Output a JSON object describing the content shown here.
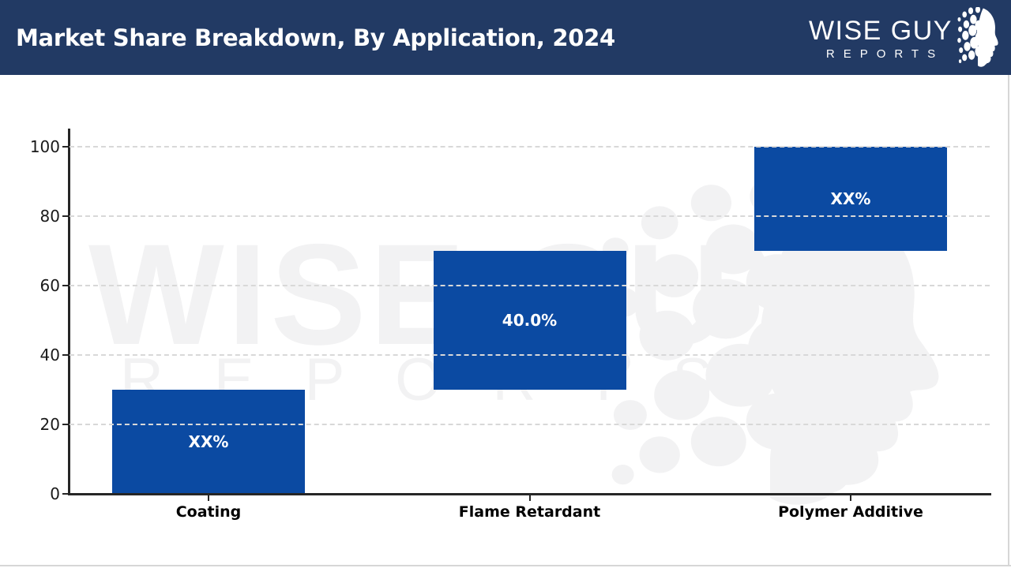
{
  "header": {
    "title": "Market Share Breakdown, By Application, 2024",
    "logo": {
      "line1": "WISE GUY",
      "line2": "REPORTS"
    }
  },
  "watermark": {
    "line1": "WISE GUY",
    "line2": "REPORTS"
  },
  "chart_data": {
    "type": "bar",
    "subtype": "floating-segment-bars (waterfall-style market share)",
    "title": "Market Share Breakdown, By Application, 2024",
    "categories": [
      "Coating",
      "Flame Retardant",
      "Polymer Additive"
    ],
    "bars": [
      {
        "category": "Coating",
        "start": 0,
        "end": 30,
        "label": "XX%"
      },
      {
        "category": "Flame Retardant",
        "start": 30,
        "end": 70,
        "label": "40.0%"
      },
      {
        "category": "Polymer Additive",
        "start": 70,
        "end": 100,
        "label": "XX%"
      }
    ],
    "xlabel": "",
    "ylabel": "",
    "yticks": [
      0,
      20,
      40,
      60,
      80,
      100
    ],
    "ylim": [
      0,
      105
    ],
    "grid": {
      "axis": "y",
      "style": "dashed",
      "drawn_above_bars": true
    },
    "legend": null,
    "colors": {
      "bar": "#0b4aa2",
      "bar_label": "#ffffff",
      "axis": "#262626",
      "tick_label": "#1a1a1a",
      "gridline": "#d8d8d8"
    }
  },
  "theme": {
    "header_bg": "#223a64",
    "header_text": "#ffffff",
    "page_bg": "#ffffff",
    "watermark_color": "#f2f2f3",
    "edge_line": "#d6d6d6"
  }
}
